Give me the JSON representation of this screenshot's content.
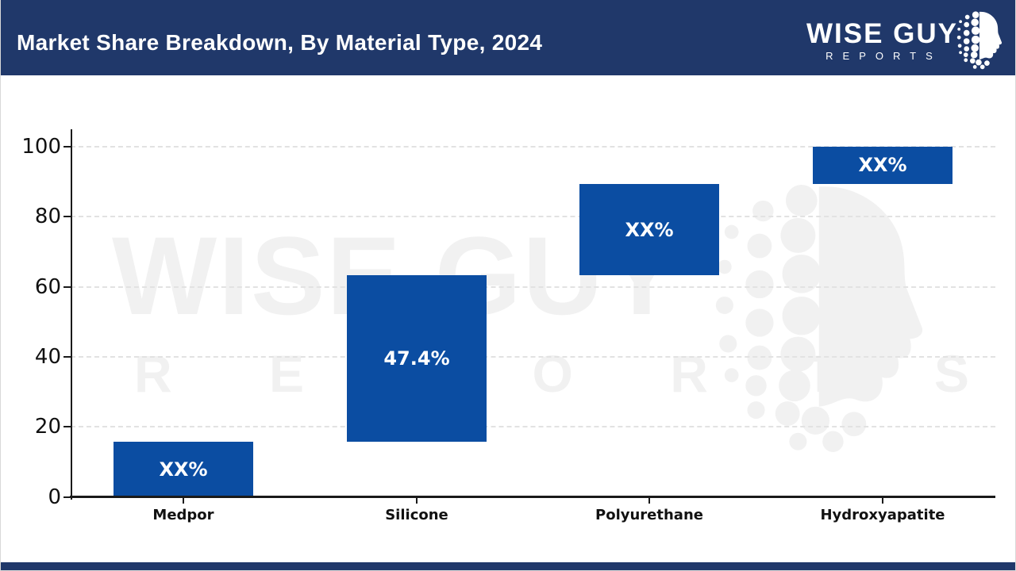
{
  "header": {
    "title": "Market Share Breakdown, By Material Type, 2024",
    "bg_color": "#20386a",
    "text_color": "#ffffff",
    "logo_line1": "WISE GUY",
    "logo_line2": "REPORTS"
  },
  "watermark": {
    "line1": "WISE GUY",
    "line2": "R E P O R T S",
    "color": "#f1f1f1"
  },
  "footer": {
    "bg_color": "#20386a"
  },
  "chart_data": {
    "type": "bar",
    "subtype": "floating-waterfall",
    "title": "Market Share Breakdown, By Material Type, 2024",
    "categories": [
      "Medpor",
      "Silicone",
      "Polyurethane",
      "Hydroxyapatite"
    ],
    "series": [
      {
        "name": "Market Share (%)",
        "segments": [
          {
            "category": "Medpor",
            "start": 0,
            "end": 15.8,
            "label": "XX%"
          },
          {
            "category": "Silicone",
            "start": 15.8,
            "end": 63.2,
            "label": "47.4%"
          },
          {
            "category": "Polyurethane",
            "start": 63.2,
            "end": 89.4,
            "label": "XX%"
          },
          {
            "category": "Hydroxyapatite",
            "start": 89.4,
            "end": 100,
            "label": "XX%"
          }
        ]
      }
    ],
    "xlabel": "",
    "ylabel": "",
    "ylim": [
      0,
      100
    ],
    "yticks": [
      0,
      20,
      40,
      60,
      80,
      100
    ],
    "grid": "horizontal-dashed",
    "gridline_color": "#e2e2e2",
    "axis_color": "#1a1a1a",
    "bar_color": "#0b4da2",
    "bar_label_color": "#ffffff",
    "legend_position": "none"
  }
}
